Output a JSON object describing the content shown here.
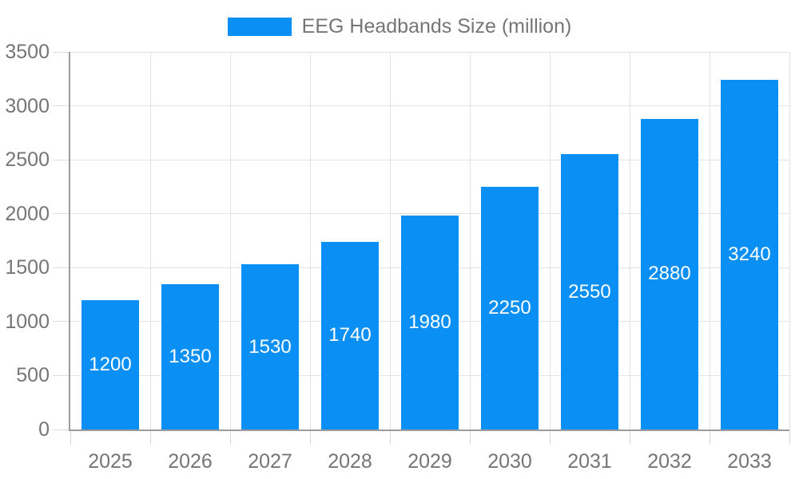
{
  "legend": {
    "label": "EEG Headbands Size (million)"
  },
  "colors": {
    "bar": "#0A90F4",
    "grid": "#e2e2e2",
    "axis": "#9b9b9b",
    "tick": "#d6d6d6",
    "text": "#757575",
    "bar_label": "#ffffff",
    "background": "#ffffff"
  },
  "chart_data": {
    "type": "bar",
    "title": "EEG Headbands Size (million)",
    "categories": [
      "2025",
      "2026",
      "2027",
      "2028",
      "2029",
      "2030",
      "2031",
      "2032",
      "2033"
    ],
    "series": [
      {
        "name": "EEG Headbands Size (million)",
        "values": [
          1200,
          1350,
          1530,
          1740,
          1980,
          2250,
          2550,
          2880,
          3240
        ]
      }
    ],
    "values": [
      1200,
      1350,
      1530,
      1740,
      1980,
      2250,
      2550,
      2880,
      3240
    ],
    "bar_labels": [
      1200,
      1350,
      1530,
      1740,
      1980,
      2250,
      2550,
      2880,
      3240
    ],
    "bar_label_position": "inside-center",
    "xlabel": "",
    "ylabel": "",
    "ylim": [
      0,
      3500
    ],
    "yticks": [
      0,
      500,
      1000,
      1500,
      2000,
      2500,
      3000,
      3500
    ],
    "grid": true,
    "legend_position": "top-center"
  }
}
